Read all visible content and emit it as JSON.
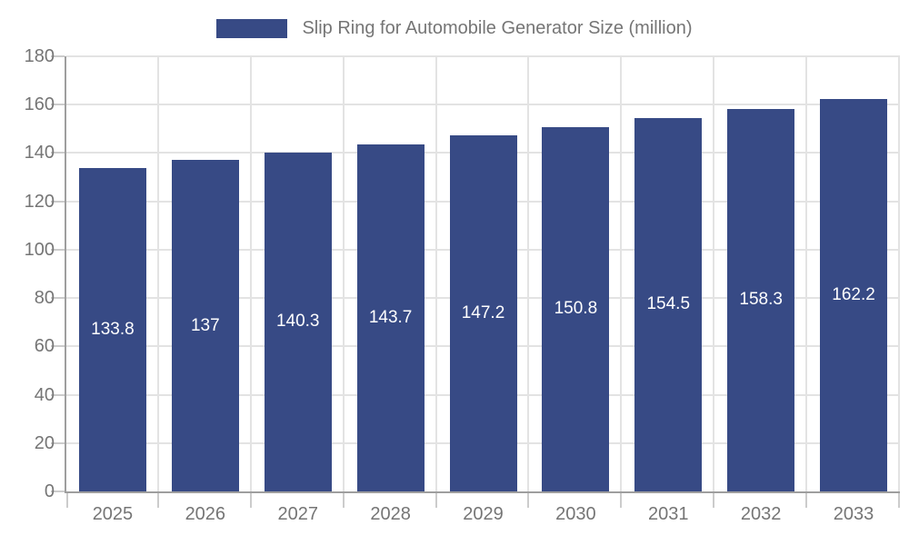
{
  "legend": {
    "label": "Slip Ring for Automobile Generator Size (million)"
  },
  "colors": {
    "background": "#ffffff",
    "bar": "#374a85",
    "bar_label": "#ffffff",
    "axis": "#9e9e9e",
    "grid": "#e3e3e3",
    "tick": "#cccccc",
    "text": "#757575"
  },
  "chart_data": {
    "type": "bar",
    "title": "Slip Ring for Automobile Generator Size (million)",
    "categories": [
      "2025",
      "2026",
      "2027",
      "2028",
      "2029",
      "2030",
      "2031",
      "2032",
      "2033"
    ],
    "values": [
      133.8,
      137,
      140.3,
      143.7,
      147.2,
      150.8,
      154.5,
      158.3,
      162.2
    ],
    "value_labels": [
      "133.8",
      "137",
      "140.3",
      "143.7",
      "147.2",
      "150.8",
      "154.5",
      "158.3",
      "162.2"
    ],
    "xlabel": "",
    "ylabel": "",
    "ylim": [
      0,
      180
    ],
    "ytick_step": 20,
    "yticks": [
      0,
      20,
      40,
      60,
      80,
      100,
      120,
      140,
      160,
      180
    ],
    "grid": true,
    "legend_position": "top",
    "value_label_position": "center-of-bar"
  }
}
